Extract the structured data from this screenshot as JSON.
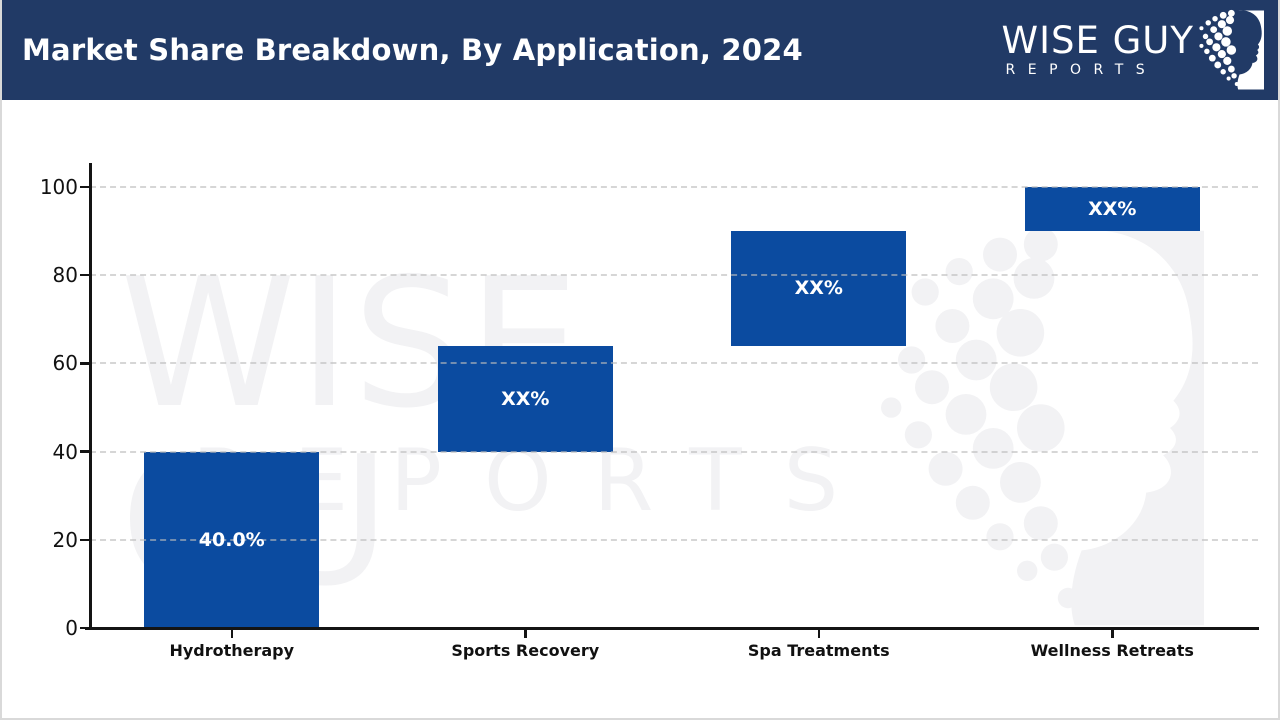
{
  "header": {
    "title": "Market Share Breakdown, By Application, 2024",
    "logo": {
      "name": "WISE GUY",
      "sub": "REPORTS"
    }
  },
  "watermark": {
    "name": "WISE GU",
    "sub": "REPORTS"
  },
  "colors": {
    "header_bg": "#213a66",
    "bar_blue": "#0b4ba0",
    "grid_gray": "#d9d9d9",
    "axis_black": "#141414",
    "bar_label_white": "#ffffff",
    "watermark_gray": "#f2f2f4"
  },
  "chart_data": {
    "type": "bar",
    "subtype": "waterfall",
    "title": "Market Share Breakdown, By Application, 2024",
    "categories": [
      "Hydrotherapy",
      "Sports Recovery",
      "Spa Treatments",
      "Wellness Retreats"
    ],
    "segments": [
      {
        "category": "Hydrotherapy",
        "start": 0,
        "end": 40,
        "label": "40.0%"
      },
      {
        "category": "Sports Recovery",
        "start": 40,
        "end": 64,
        "label": "XX%"
      },
      {
        "category": "Spa Treatments",
        "start": 64,
        "end": 90,
        "label": "XX%"
      },
      {
        "category": "Wellness Retreats",
        "start": 90,
        "end": 100,
        "label": "XX%"
      }
    ],
    "yticks": [
      0,
      20,
      40,
      60,
      80,
      100
    ],
    "ylim": [
      0,
      100
    ],
    "xlabel": "",
    "ylabel": "",
    "grid": "dashed-horizontal",
    "legend": "none",
    "bar_value_unit": "%"
  }
}
